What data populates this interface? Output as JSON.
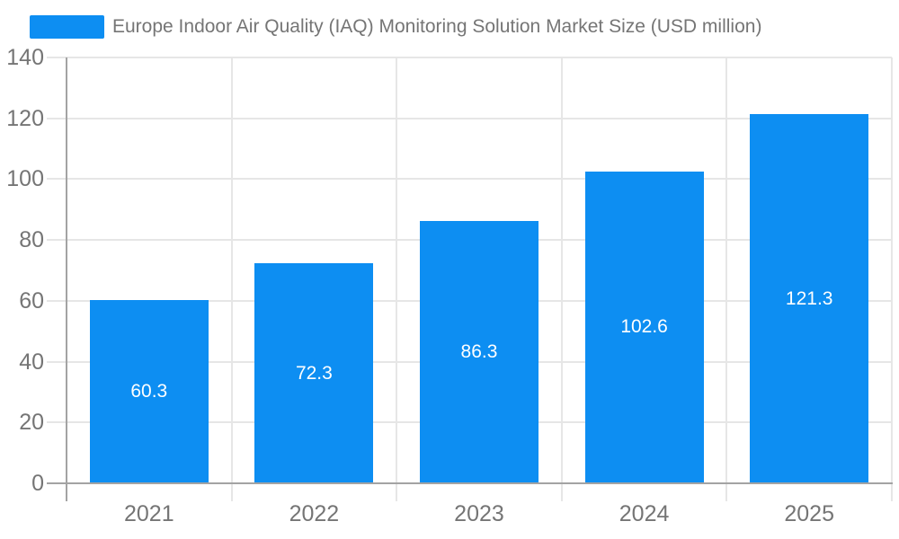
{
  "chart_data": {
    "type": "bar",
    "title": "Europe Indoor Air Quality (IAQ) Monitoring Solution Market Size (USD million)",
    "legend_entries": [
      "Europe Indoor Air Quality (IAQ) Monitoring Solution Market Size (USD million)"
    ],
    "legend_position": "top-left",
    "categories": [
      "2021",
      "2022",
      "2023",
      "2024",
      "2025"
    ],
    "values": [
      60.3,
      72.3,
      86.3,
      102.6,
      121.3
    ],
    "value_labels": [
      "60.3",
      "72.3",
      "86.3",
      "102.6",
      "121.3"
    ],
    "xlabel": "",
    "ylabel": "",
    "ylim": [
      0,
      140
    ],
    "yticks": [
      0,
      20,
      40,
      60,
      80,
      100,
      120,
      140
    ],
    "grid": true,
    "value_labels_inside_bars": true
  },
  "colors": {
    "bar": "#0d8ef2",
    "bar_value_text": "#ffffff",
    "axis_text": "#757575",
    "legend_text": "#757575",
    "axis_line": "#a3a3a3",
    "gridline": "#e6e6e6",
    "background": "#ffffff"
  }
}
